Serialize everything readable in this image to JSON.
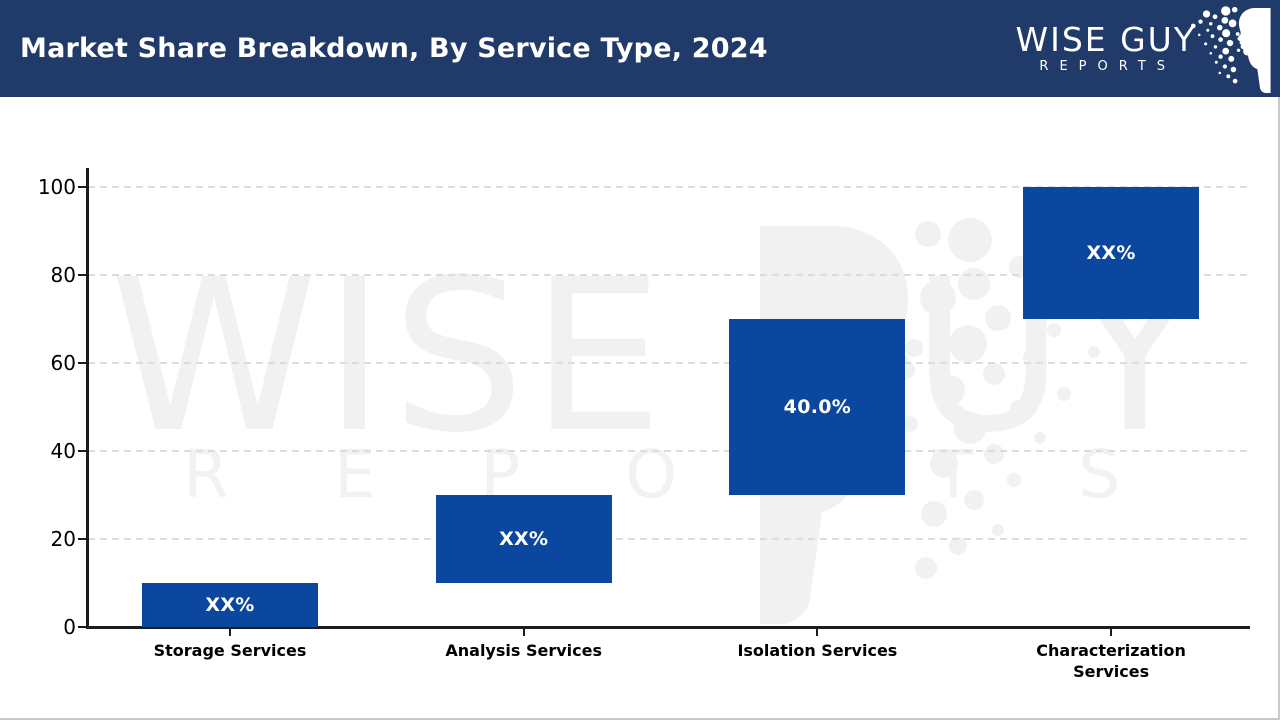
{
  "header": {
    "title": "Market Share Breakdown, By Service Type, 2024",
    "logo": {
      "name": "WISE GUY",
      "tagline": "REPORTS"
    }
  },
  "watermark": {
    "line1": "WISE GUY",
    "line2": "R E P O R T S"
  },
  "chart_data": {
    "type": "bar",
    "subtype": "floating-segment-waterfall",
    "title": "Market Share Breakdown, By Service Type, 2024",
    "categories": [
      "Storage Services",
      "Analysis Services",
      "Isolation Services",
      "Characterization Services"
    ],
    "bars": [
      {
        "category": "Storage Services",
        "from": 0,
        "to": 10,
        "label": "XX%"
      },
      {
        "category": "Analysis Services",
        "from": 10,
        "to": 30,
        "label": "XX%"
      },
      {
        "category": "Isolation Services",
        "from": 30,
        "to": 70,
        "label": "40.0%"
      },
      {
        "category": "Characterization Services",
        "from": 70,
        "to": 100,
        "label": "XX%"
      }
    ],
    "xlabel": "",
    "ylabel": "",
    "ylim": [
      0,
      100
    ],
    "yticks": [
      0,
      20,
      40,
      60,
      80,
      100
    ],
    "grid": "horizontal-dashed",
    "legend_position": "none",
    "colors": {
      "bar": "#0c479f",
      "bar_label": "#ffffff",
      "axis": "#1c1c1c",
      "gridline": "#dcdcdc",
      "header_bg": "#203a69",
      "header_text": "#ffffff",
      "watermark": "#f1f1f1"
    }
  }
}
